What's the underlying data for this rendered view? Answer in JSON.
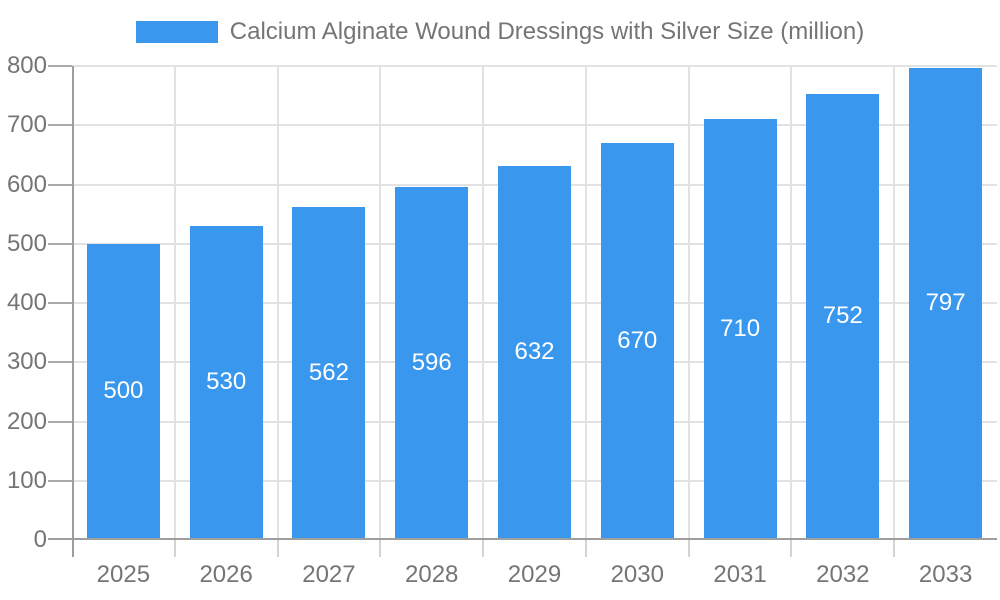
{
  "chart_data": {
    "type": "bar",
    "title": "Calcium Alginate Wound Dressings with Silver Size (million)",
    "series": [
      {
        "name": "Calcium Alginate Wound Dressings with Silver Size (million)",
        "values": [
          500,
          530,
          562,
          596,
          632,
          670,
          710,
          752,
          797
        ]
      }
    ],
    "categories": [
      "2025",
      "2026",
      "2027",
      "2028",
      "2029",
      "2030",
      "2031",
      "2032",
      "2033"
    ],
    "xlabel": "",
    "ylabel": "",
    "ylim": [
      0,
      800
    ],
    "ytick_step": 100,
    "ytick_labels": [
      "0",
      "100",
      "200",
      "300",
      "400",
      "500",
      "600",
      "700",
      "800"
    ],
    "grid": true,
    "legend_position": "top",
    "value_label_position": "inside-center"
  },
  "legend": {
    "label": "Calcium Alginate Wound Dressings with Silver Size (million)"
  },
  "colors": {
    "bar": "#3998ee",
    "value_label": "#ffffff",
    "axis_text": "#757575",
    "axis_line": "#9e9e9e",
    "tick_y": "#ababab",
    "tick_x": "#d4d4d4",
    "gridline": "#e2e2e2",
    "background": "#ffffff"
  }
}
